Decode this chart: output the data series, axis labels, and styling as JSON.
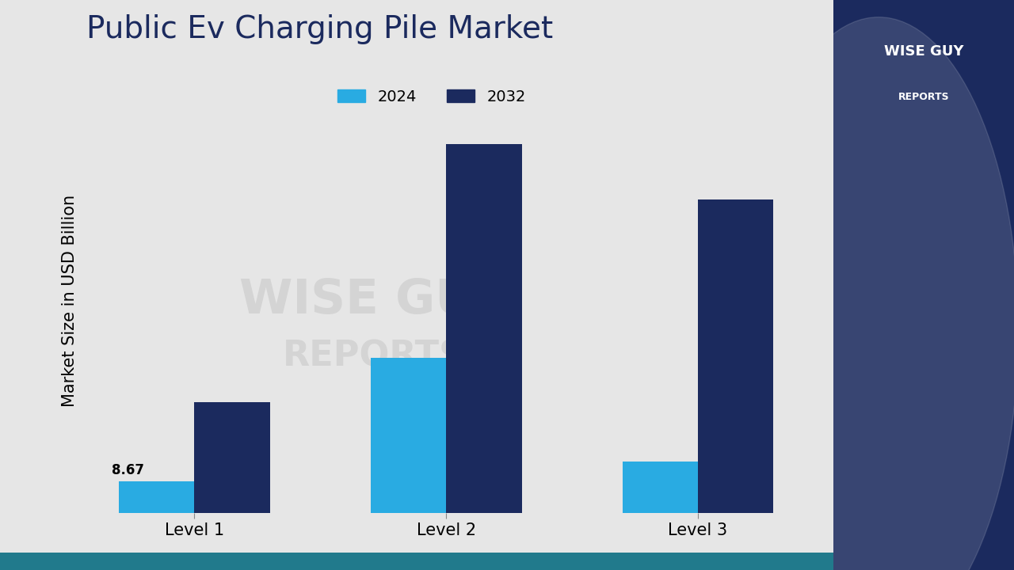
{
  "title": "Public Ev Charging Pile Market",
  "ylabel": "Market Size in USD Billion",
  "categories": [
    "Level 1",
    "Level 2",
    "Level 3"
  ],
  "series_2024": [
    8.67,
    42.0,
    14.0
  ],
  "series_2032": [
    30.0,
    100.0,
    85.0
  ],
  "color_2024": "#29ABE2",
  "color_2032": "#1B2A5E",
  "annotation_text": "8.67",
  "title_color": "#1B2A5E",
  "bg_color": "#E6E6E6",
  "bottom_bar_color": "#217A8C",
  "right_panel_color": "#1B2A5E",
  "title_fontsize": 28,
  "label_fontsize": 15,
  "tick_fontsize": 15,
  "legend_fontsize": 14,
  "bar_width": 0.3,
  "ylim": [
    0,
    115
  ],
  "watermark_color": "#C8C8C8",
  "watermark_alpha": 0.6
}
